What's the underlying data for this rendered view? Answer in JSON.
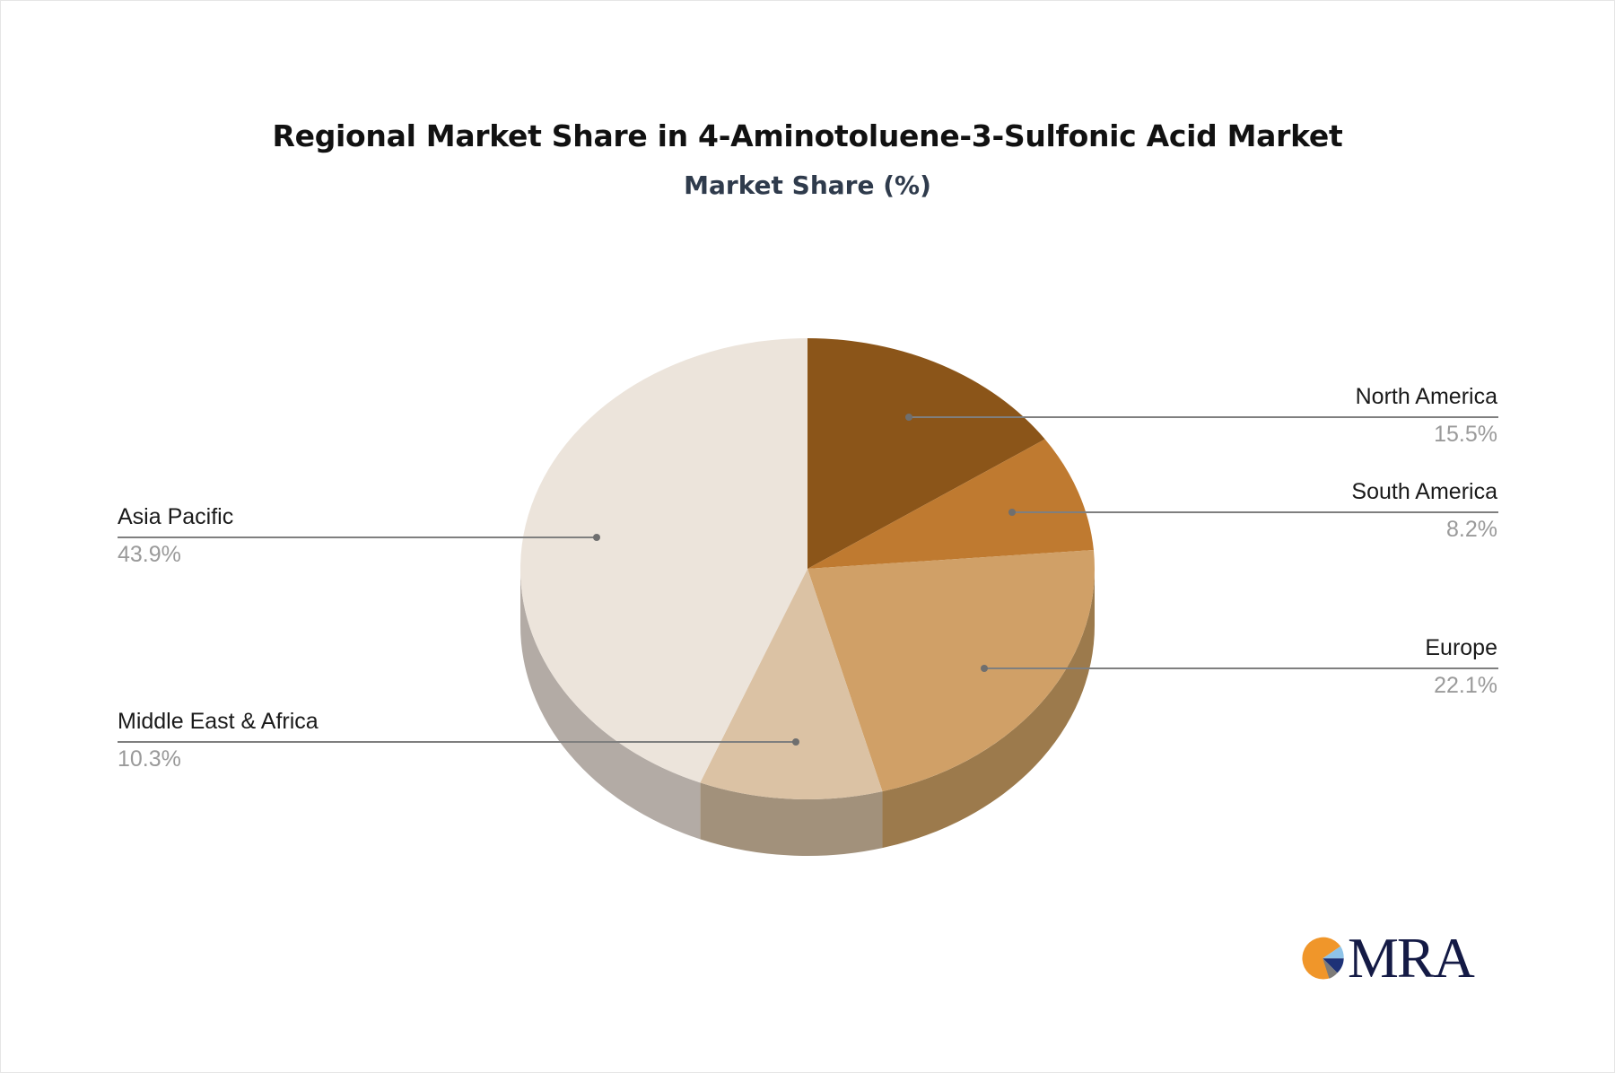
{
  "header": {
    "title": "Regional Market Share in 4-Aminotoluene-3-Sulfonic Acid Market",
    "subtitle": "Market Share (%)"
  },
  "logo": {
    "text": "MRA"
  },
  "labels": [
    {
      "name": "North America",
      "value": "15.5%"
    },
    {
      "name": "South America",
      "value": "8.2%"
    },
    {
      "name": "Europe",
      "value": "22.1%"
    },
    {
      "name": "Middle East & Africa",
      "value": "10.3%"
    },
    {
      "name": "Asia Pacific",
      "value": "43.9%"
    }
  ],
  "chart_data": {
    "type": "pie",
    "style": "3d",
    "title": "Regional Market Share in 4-Aminotoluene-3-Sulfonic Acid Market",
    "subtitle": "Market Share (%)",
    "categories": [
      "North America",
      "South America",
      "Europe",
      "Middle East & Africa",
      "Asia Pacific"
    ],
    "values": [
      15.5,
      8.2,
      22.1,
      10.3,
      43.9
    ],
    "colors": [
      "#8B5519",
      "#BF7A30",
      "#D0A067",
      "#DBC2A4",
      "#ECE4DB"
    ],
    "side_colors": [
      "#6E4414",
      "#9A6428",
      "#9C7A4C",
      "#A2917B",
      "#B3ABA5"
    ],
    "start_angle": "top, clockwise",
    "legend": "callout labels"
  }
}
